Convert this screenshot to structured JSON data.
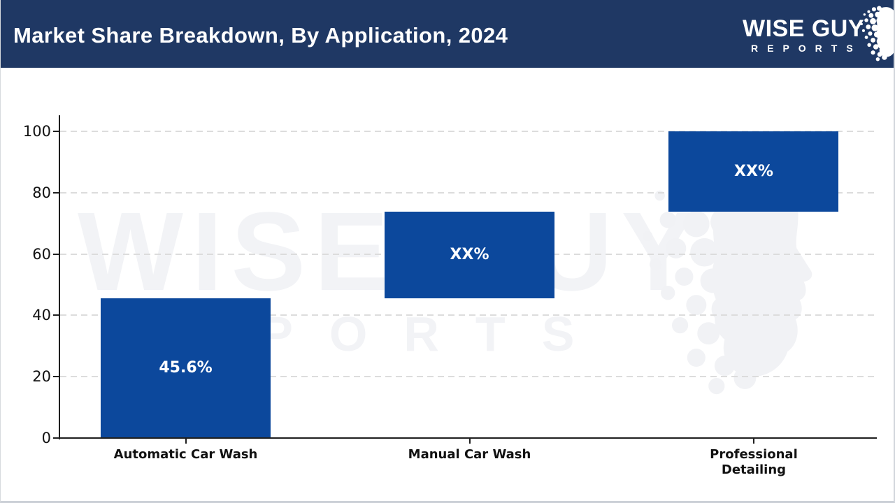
{
  "header": {
    "title": "Market Share Breakdown, By Application, 2024",
    "bg_color": "#1f3864",
    "logo": {
      "name_line": "WISE GUY",
      "sub_line": "REPORTS"
    }
  },
  "watermark": {
    "line1": "WISE GUY",
    "line2": "REPORTS"
  },
  "chart_data": {
    "type": "bar",
    "variant": "waterfall-floating-bars",
    "title": "Market Share Breakdown, By Application, 2024",
    "categories": [
      "Automatic Car Wash",
      "Manual Car Wash",
      "Professional\nDetailing"
    ],
    "segments": [
      {
        "category": "Automatic Car Wash",
        "start": 0,
        "end": 45.6,
        "label": "45.6%"
      },
      {
        "category": "Manual Car Wash",
        "start": 45.6,
        "end": 73.8,
        "label": "XX%"
      },
      {
        "category": "Professional Detailing",
        "start": 73.8,
        "end": 100,
        "label": "XX%"
      }
    ],
    "xlabel": "",
    "ylabel": "",
    "yticks": [
      0,
      20,
      40,
      60,
      80,
      100
    ],
    "ylim": [
      0,
      105.2
    ],
    "grid": {
      "axis": "y",
      "style": "dashed",
      "color": "#dcdcdc"
    },
    "legend": "none",
    "bar_color": "#0c489c",
    "bar_label_color": "#ffffff",
    "axis_color": "#1f1f1f",
    "tick_label_color": "#111111"
  }
}
